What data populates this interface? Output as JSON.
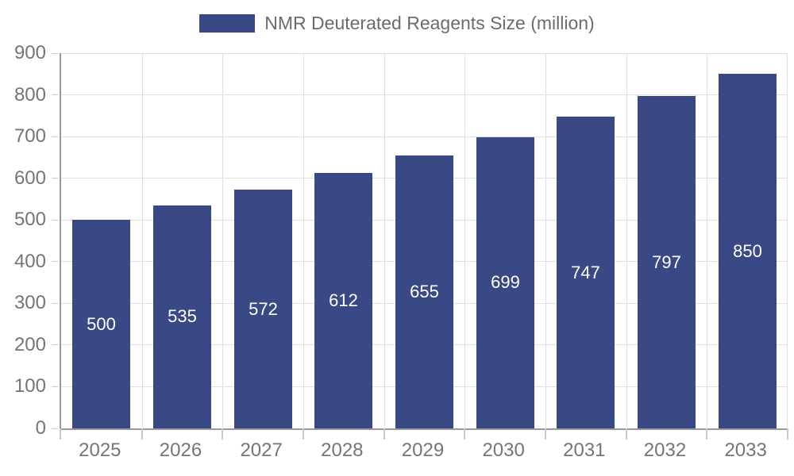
{
  "legend": {
    "swatch_color": "#384986"
  },
  "chart_data": {
    "type": "bar",
    "title": "NMR Deuterated Reagents Size (million)",
    "categories": [
      "2025",
      "2026",
      "2027",
      "2028",
      "2029",
      "2030",
      "2031",
      "2032",
      "2033"
    ],
    "values": [
      500,
      535,
      572,
      612,
      655,
      699,
      747,
      797,
      850
    ],
    "xlabel": "",
    "ylabel": "",
    "ylim": [
      0,
      900
    ],
    "ytick_step": 100,
    "ytick_labels": [
      "0",
      "100",
      "200",
      "300",
      "400",
      "500",
      "600",
      "700",
      "800",
      "900"
    ],
    "bar_color": "#384986",
    "value_label_color": "#ffffff",
    "grid": true,
    "legend_position": "top-center"
  }
}
